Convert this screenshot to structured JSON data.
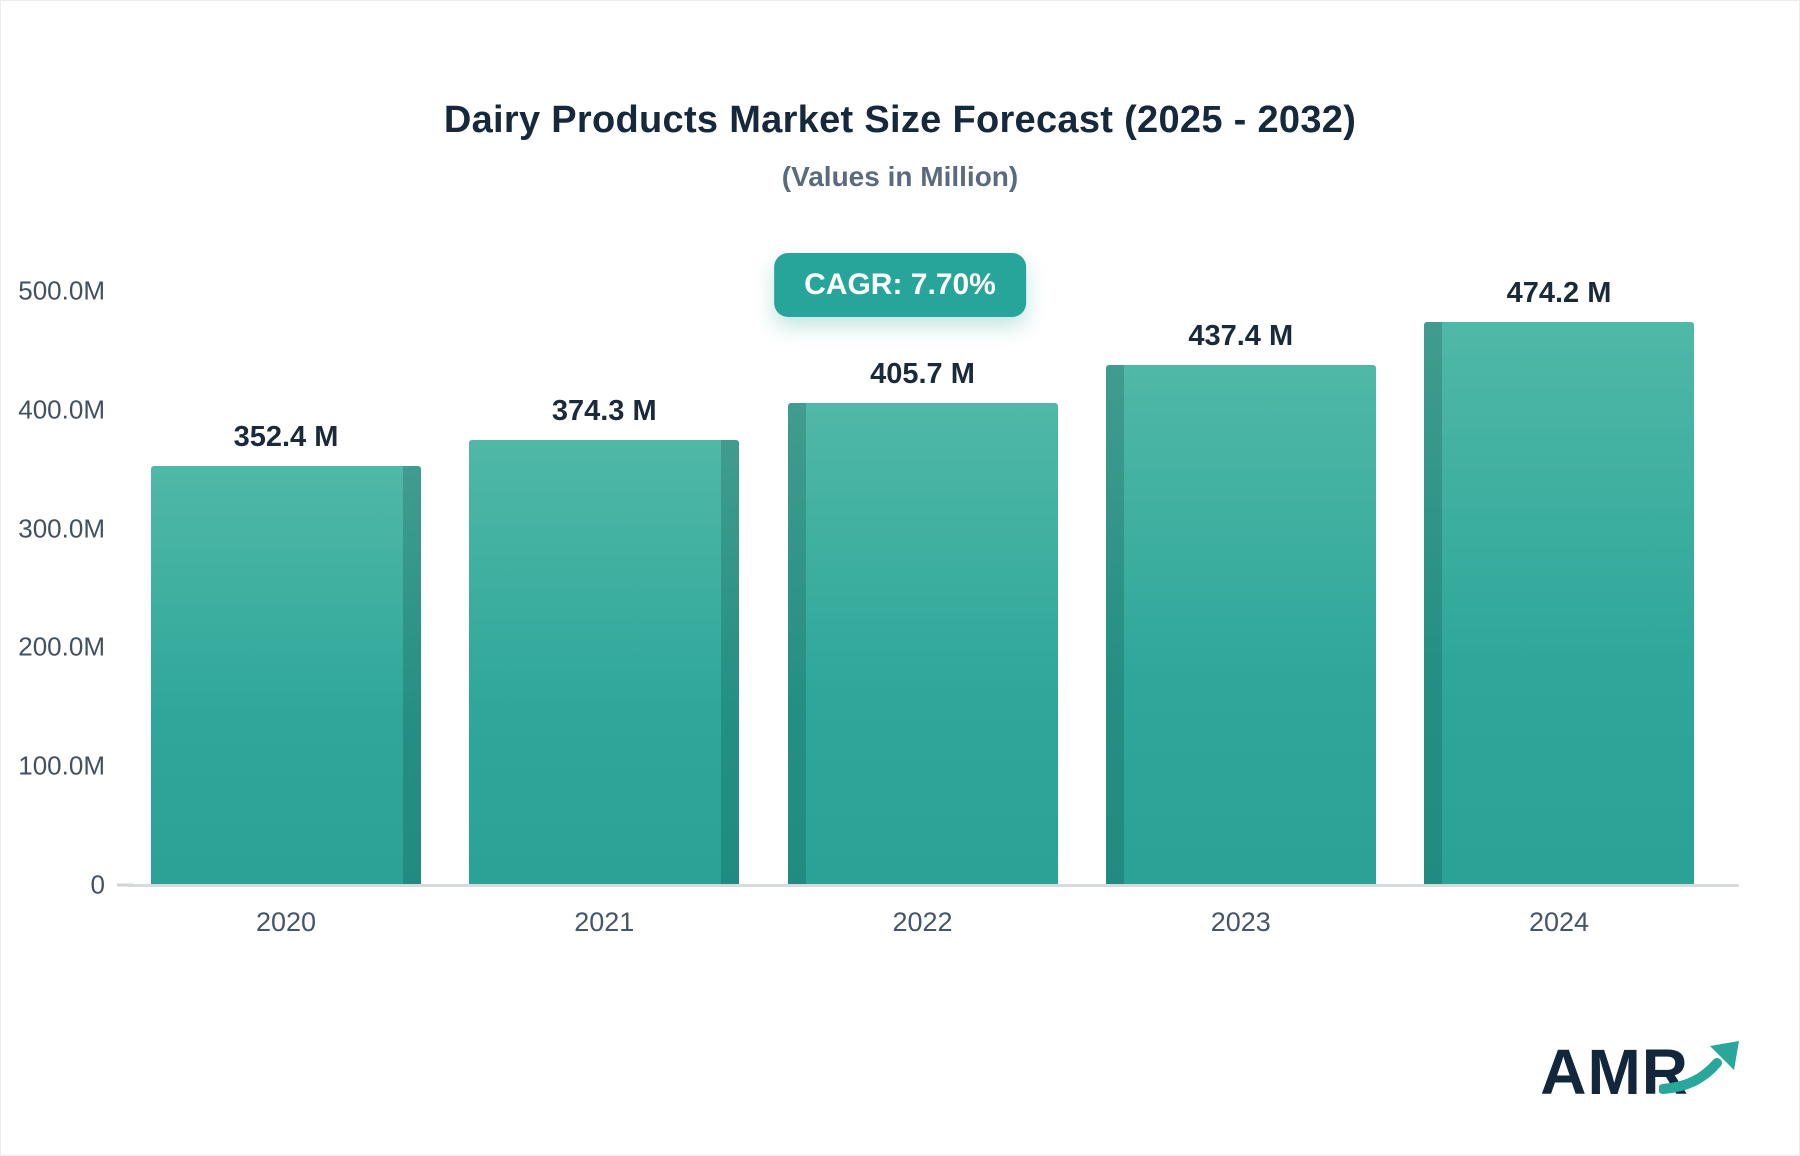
{
  "header": {
    "title": "Dairy Products Market Size Forecast (2025 - 2032)",
    "subtitle": "(Values in Million)",
    "cagr_badge": "CAGR: 7.70%"
  },
  "chart_data": {
    "type": "bar",
    "title": "Dairy Products Market Size Forecast (2025 - 2032)",
    "subtitle": "(Values in Million)",
    "cagr": "7.70%",
    "categories": [
      "2020",
      "2021",
      "2022",
      "2023",
      "2024"
    ],
    "values": [
      352.4,
      374.3,
      405.7,
      437.4,
      474.2
    ],
    "bar_labels": [
      "352.4 M",
      "374.3 M",
      "405.7 M",
      "437.4 M",
      "474.2 M"
    ],
    "unit": "Million",
    "xlabel": "",
    "ylabel": "",
    "ylim": [
      0,
      500
    ],
    "y_ticks": [
      "500.0M",
      "400.0M",
      "300.0M",
      "200.0M",
      "100.0M",
      "0"
    ],
    "grid": false,
    "legend": "none",
    "bar_color": "#2fa99b"
  },
  "branding": {
    "logo_text": "AMR"
  },
  "colors": {
    "accent": "#2aa79b",
    "bar_gradient_top": "#50b8a7",
    "bar_gradient_bottom": "#2aa296",
    "title_color": "#15283c",
    "subtitle_color": "#5b6b7d",
    "axis_label_color": "#42505f"
  }
}
